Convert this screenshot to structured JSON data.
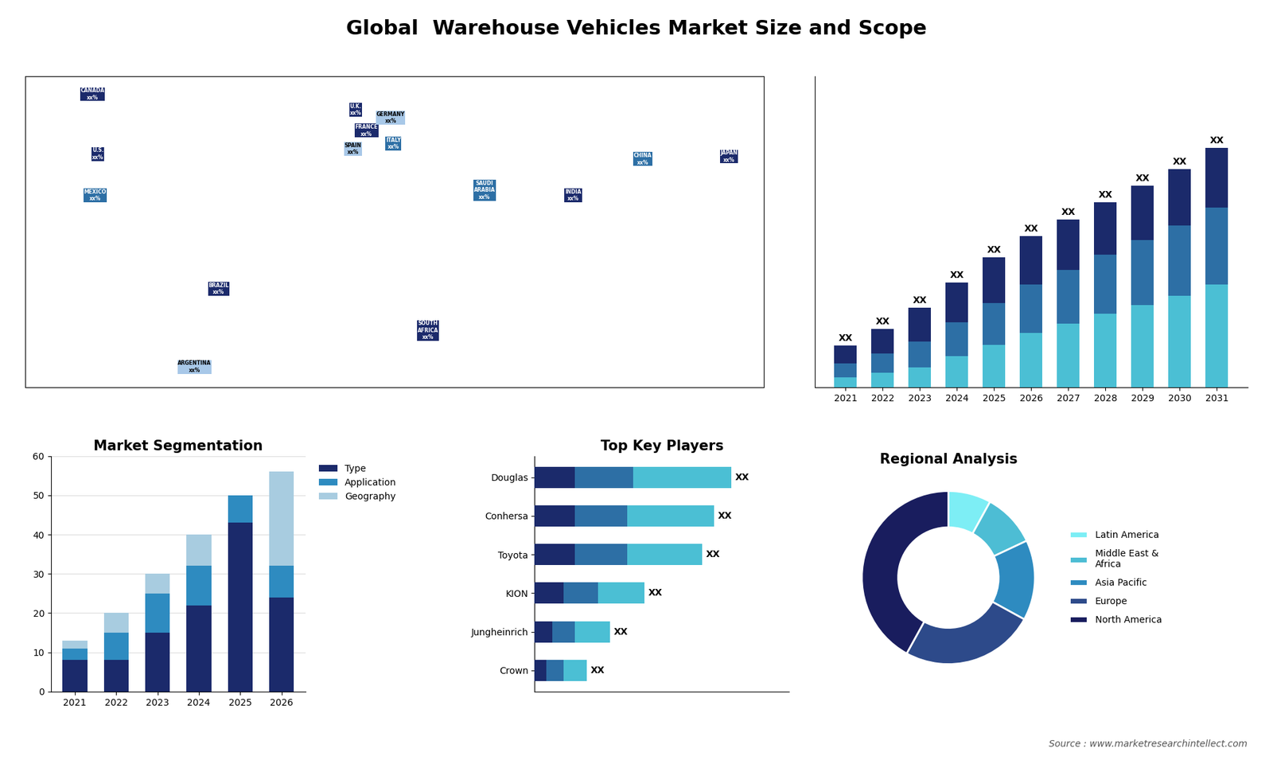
{
  "title": "Global  Warehouse Vehicles Market Size and Scope",
  "source": "Source : www.marketresearchintellect.com",
  "chart_data": [
    {
      "type": "map",
      "x": [
        -100,
        -98,
        -99,
        -53,
        -62,
        -2,
        2,
        -3,
        11,
        12,
        46,
        25,
        105,
        137,
        79
      ],
      "values": [
        61,
        38,
        22,
        -14,
        -44,
        55,
        47,
        40,
        52,
        42,
        24,
        -30,
        36,
        37,
        22
      ],
      "annotations": [
        "CANADA\nxx%",
        "U.S.\nxx%",
        "MEXICO\nxx%",
        "BRAZIL\nxx%",
        "ARGENTINA\nxx%",
        "U.K.\nxx%",
        "FRANCE\nxx%",
        "SPAIN\nxx%",
        "GERMANY\nxx%",
        "ITALY\nxx%",
        "SAUDI\nARABIA\nxx%",
        "SOUTH\nAFRICA\nxx%",
        "CHINA\nxx%",
        "JAPAN\nxx%",
        "INDIA\nxx%"
      ],
      "colors": [
        "#1b2a6b",
        "#1b2a6b",
        "#2d6fa5",
        "#1b2a6b",
        "#a8c8e8",
        "#1b2a6b",
        "#1b2a6b",
        "#a8c8e8",
        "#a8c8e8",
        "#2d6fa5",
        "#2d6fa5",
        "#1b2a6b",
        "#2d6fa5",
        "#1b2a6b",
        "#1b2a6b"
      ],
      "xlim": [
        -125,
        150
      ],
      "ylim": [
        -52,
        68
      ],
      "tick_labels": false
    },
    {
      "type": "bar",
      "stacked": true,
      "categories": [
        "2021",
        "2022",
        "2023",
        "2024",
        "2025",
        "2026",
        "2027",
        "2028",
        "2029",
        "2030",
        "2031"
      ],
      "series": [
        {
          "color": "#4bbfd4",
          "values": [
            2.5,
            3.5,
            4.75,
            7.5,
            10.23,
            12.96,
            15.2,
            17.6,
            19.68,
            21.84,
            24.51
          ]
        },
        {
          "color": "#2d6fa5",
          "values": [
            3.3,
            4.62,
            6.27,
            8.0,
            9.92,
            11.52,
            12.8,
            14.08,
            15.36,
            16.64,
            18.24
          ]
        },
        {
          "color": "#1b2a6b",
          "values": [
            4.2,
            5.88,
            7.98,
            9.5,
            10.85,
            11.52,
            12.0,
            12.32,
            12.96,
            13.52,
            14.25
          ]
        }
      ],
      "totals": [
        10,
        14,
        19,
        25,
        31,
        36,
        40,
        44,
        48,
        52,
        57
      ],
      "total_labels": [
        "XX",
        "XX",
        "XX",
        "XX",
        "XX",
        "XX",
        "XX",
        "XX",
        "XX",
        "XX",
        "XX"
      ],
      "ylim": [
        0,
        74.1
      ],
      "tick_labels": "x",
      "grid": false
    },
    {
      "type": "bar",
      "stacked": true,
      "title": "Market Segmentation",
      "categories": [
        "2021",
        "2022",
        "2023",
        "2024",
        "2025",
        "2026"
      ],
      "series": [
        {
          "name": "Type",
          "color": "#1b2a6b",
          "values": [
            8,
            8,
            15,
            22,
            43,
            24
          ]
        },
        {
          "name": "Application",
          "color": "#2e8bc0",
          "values": [
            3,
            7,
            10,
            10,
            7,
            8
          ]
        },
        {
          "name": "Geography",
          "color": "#a8cce0",
          "values": [
            2,
            5,
            5,
            8,
            0,
            24
          ]
        }
      ],
      "ylim": [
        0,
        60
      ],
      "yticks": [
        0,
        10,
        20,
        30,
        40,
        50,
        60
      ],
      "grid": true,
      "legend": "upper left"
    },
    {
      "type": "bar",
      "orientation": "horizontal",
      "stacked": true,
      "title": "Top Key Players",
      "categories": [
        "Douglas",
        "Conhersa",
        "Toyota",
        "KION",
        "Jungheinrich",
        "Crown"
      ],
      "series": [
        {
          "color": "#1b2a6b",
          "values": [
            3.5,
            3.5,
            3.5,
            2.5,
            1.5,
            1.0
          ]
        },
        {
          "color": "#2d6fa5",
          "values": [
            5.0,
            4.5,
            4.5,
            3.0,
            2.0,
            1.5
          ]
        },
        {
          "color": "#4bbfd4",
          "values": [
            8.5,
            7.5,
            6.5,
            4.0,
            3.0,
            2.0
          ]
        }
      ],
      "totals": [
        17,
        15.5,
        14.5,
        9.5,
        6.5,
        4.5
      ],
      "total_labels": [
        "XX",
        "XX",
        "XX",
        "XX",
        "XX",
        "XX"
      ],
      "xlim": [
        0,
        22
      ],
      "tick_labels": "y",
      "grid": false
    },
    {
      "type": "pie",
      "title": "Regional Analysis",
      "categories": [
        "Latin America",
        "Middle East &\nAfrica",
        "Asia Pacific",
        "Europe",
        "North America"
      ],
      "values": [
        8,
        10,
        15,
        25,
        42
      ],
      "colors": [
        "#7deef5",
        "#4dbdd4",
        "#2e8bc0",
        "#2d4a8a",
        "#191d5e"
      ],
      "legend": "center left"
    }
  ]
}
